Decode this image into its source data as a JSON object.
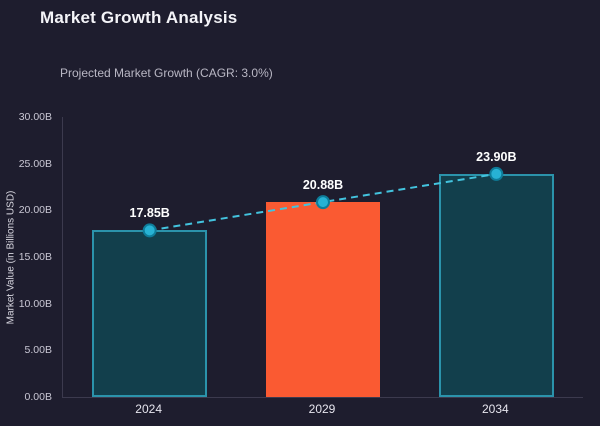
{
  "header": {
    "title": "Market Growth Analysis",
    "subtitle": "Projected Market Growth (CAGR: 3.0%)"
  },
  "chart_data": {
    "type": "bar",
    "title": "Market Growth Analysis",
    "subtitle": "Projected Market Growth (CAGR: 3.0%)",
    "categories": [
      "2024",
      "2029",
      "2034"
    ],
    "values": [
      17.85,
      20.88,
      23.9
    ],
    "value_labels": [
      "17.85B",
      "20.88B",
      "23.90B"
    ],
    "xlabel": "",
    "ylabel": "Market Value (in Billions USD)",
    "ylim": [
      0,
      30
    ],
    "yticks": [
      "0.00B",
      "5.00B",
      "10.00B",
      "15.00B",
      "20.00B",
      "25.00B",
      "30.00B"
    ],
    "grid": false,
    "legend": false,
    "trend_overlay": true,
    "colors": {
      "background": "#1e1d2e",
      "bar_fills": [
        "#123f4c",
        "#fa5a32",
        "#123f4c"
      ],
      "bar_borders": [
        "#2b93ab",
        "#fa5a32",
        "#2b93ab"
      ],
      "trend_line": "#43c3de",
      "marker_fill": "#27b2d4",
      "marker_stroke": "#0e7c99",
      "title_text": "#f4f4f8",
      "subtitle_text": "#b9b7c4",
      "tick_text": "#c9c7d4",
      "value_label_text": "#ffffff"
    }
  }
}
